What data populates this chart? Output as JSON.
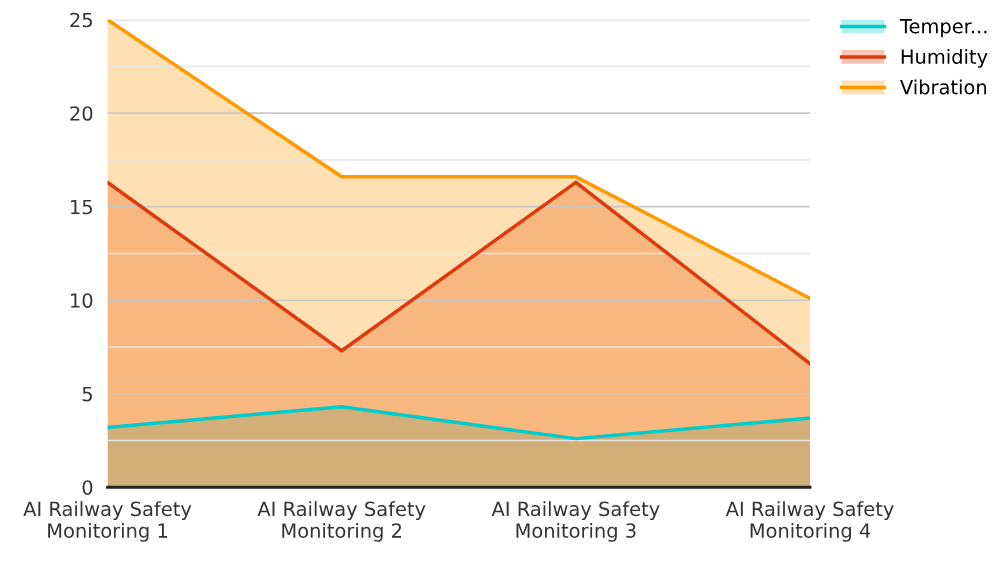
{
  "chart_data": {
    "type": "area",
    "categories": [
      "AI Railway Safety\nMonitoring 1",
      "AI Railway Safety\nMonitoring 2",
      "AI Railway Safety\nMonitoring 3",
      "AI Railway Safety\nMonitoring 4"
    ],
    "series": [
      {
        "name": "Temper...",
        "color": "#00cccc",
        "values": [
          3.2,
          4.3,
          2.6,
          3.7
        ]
      },
      {
        "name": "Humidity",
        "color": "#dd3a10",
        "values": [
          16.3,
          7.3,
          16.3,
          6.6
        ]
      },
      {
        "name": "Vibration",
        "color": "#ff9900",
        "values": [
          25,
          16.6,
          16.6,
          10.1
        ]
      }
    ],
    "ylim": [
      0,
      25
    ],
    "yticks": [
      0,
      {
        "value": 2.5,
        "label": null
      },
      5,
      {
        "value": 7.5,
        "label": null
      },
      10,
      {
        "value": 12.5,
        "label": null
      },
      15,
      {
        "value": 17.5,
        "label": null
      },
      20,
      {
        "value": 22.5,
        "label": null
      },
      25
    ],
    "grid": "y",
    "legend": "top right",
    "marker": "none",
    "line_style": "solid"
  }
}
